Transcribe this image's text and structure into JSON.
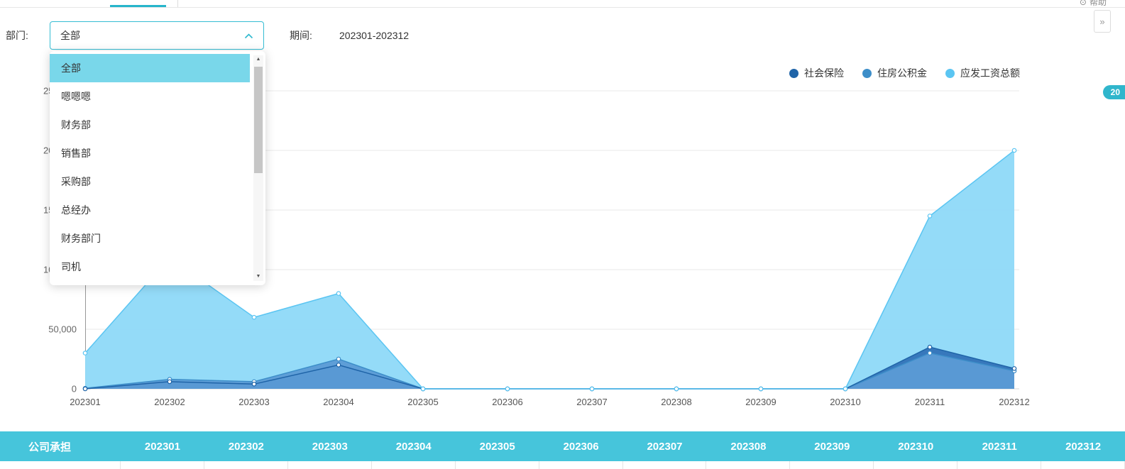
{
  "header": {
    "help_icon": "⊙",
    "help_label": "帮助",
    "collapse_icon": "»"
  },
  "filters": {
    "department_label": "部门:",
    "department_value": "全部",
    "period_label": "期间:",
    "period_value": "202301-202312"
  },
  "dropdown": {
    "items": [
      {
        "label": "全部",
        "selected": true
      },
      {
        "label": "嗯嗯嗯"
      },
      {
        "label": "财务部"
      },
      {
        "label": "销售部"
      },
      {
        "label": "采购部"
      },
      {
        "label": "总经办"
      },
      {
        "label": "财务部门"
      },
      {
        "label": "司机"
      }
    ]
  },
  "side_badge": "20",
  "chart_data": {
    "type": "area",
    "categories": [
      "202301",
      "202302",
      "202303",
      "202304",
      "202305",
      "202306",
      "202307",
      "202308",
      "202309",
      "202310",
      "202311",
      "202312"
    ],
    "series": [
      {
        "name": "社会保险",
        "color": "#1f64a8",
        "fill": "#3273b8",
        "values": [
          0,
          6000,
          4000,
          20000,
          0,
          0,
          0,
          0,
          0,
          0,
          35000,
          17000
        ]
      },
      {
        "name": "住房公积金",
        "color": "#3d8ec9",
        "fill": "#5b9bd5",
        "values": [
          500,
          8000,
          6000,
          25000,
          0,
          0,
          0,
          0,
          0,
          0,
          30000,
          15000
        ]
      },
      {
        "name": "应发工资总额",
        "color": "#5bc5f2",
        "fill": "#8ed9f8",
        "values": [
          30000,
          110000,
          60000,
          80000,
          0,
          0,
          0,
          0,
          0,
          0,
          145000,
          200000
        ]
      }
    ],
    "ylim": [
      0,
      250000
    ],
    "ytick_step": 50000,
    "ytick_labels": [
      "0",
      "50,000",
      "100,000",
      "150,000",
      "200,000",
      "250,000"
    ],
    "grid": true,
    "legend_position": "top-right"
  },
  "table": {
    "row_label": "公司承担",
    "columns": [
      "202301",
      "202302",
      "202303",
      "202304",
      "202305",
      "202306",
      "202307",
      "202308",
      "202309",
      "202310",
      "202311",
      "202312"
    ]
  }
}
